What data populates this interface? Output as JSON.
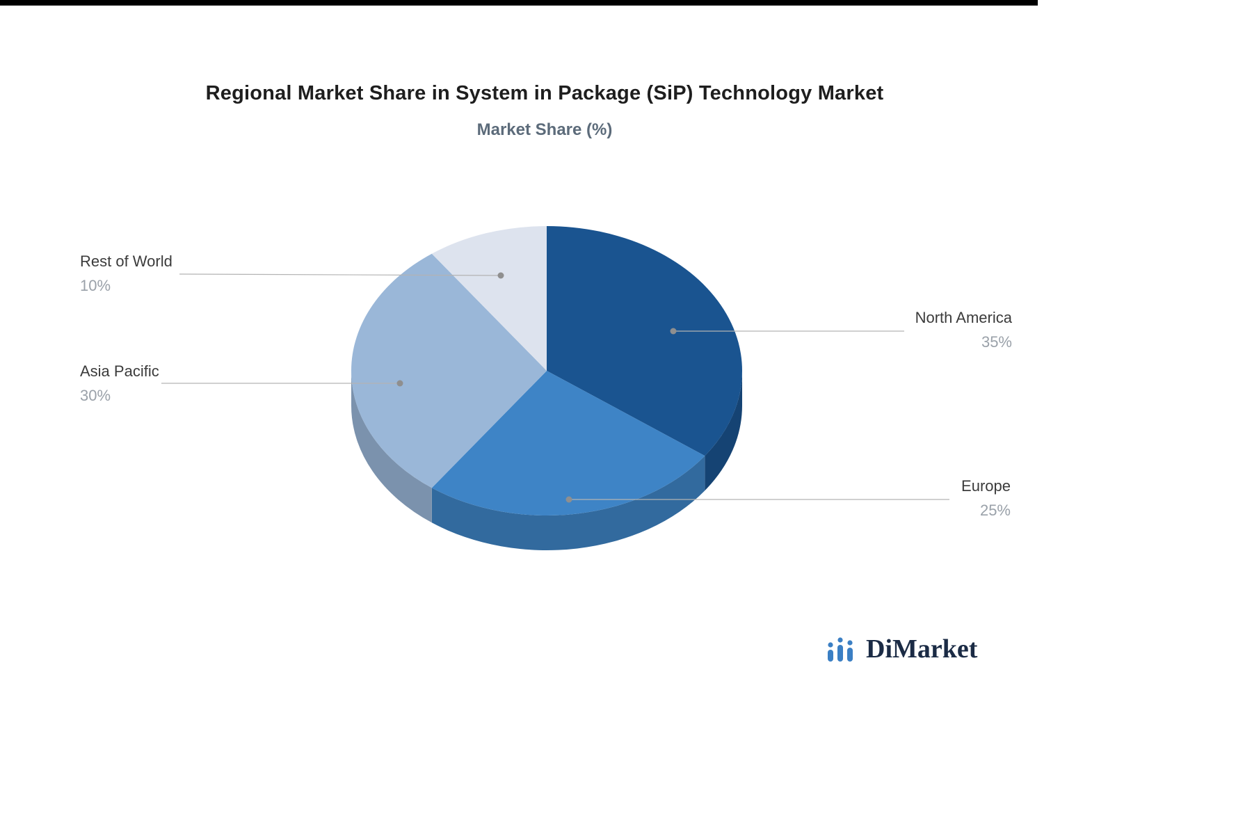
{
  "header": {
    "title": "Regional Market Share in System in Package (SiP) Technology Market",
    "subtitle": "Market Share (%)"
  },
  "chart_data": {
    "type": "pie",
    "style": "3d",
    "title": "Regional Market Share in System in Package (SiP) Technology Market",
    "subtitle": "Market Share (%)",
    "unit": "%",
    "direction": "clockwise",
    "start_angle_deg": 0,
    "legend_position": "none",
    "labels_outside": true,
    "slices": [
      {
        "label": "North America",
        "value": 35,
        "display_value": "35%",
        "color": "#1a5490"
      },
      {
        "label": "Europe",
        "value": 25,
        "display_value": "25%",
        "color": "#3e84c6"
      },
      {
        "label": "Asia Pacific",
        "value": 30,
        "display_value": "30%",
        "color": "#9ab7d8"
      },
      {
        "label": "Rest of World",
        "value": 10,
        "display_value": "10%",
        "color": "#dde3ee"
      }
    ]
  },
  "branding": {
    "name": "DiMarket",
    "icon": "bar-chart-icon",
    "text_color": "#1b2b45",
    "icon_color": "#3b7fc4"
  }
}
